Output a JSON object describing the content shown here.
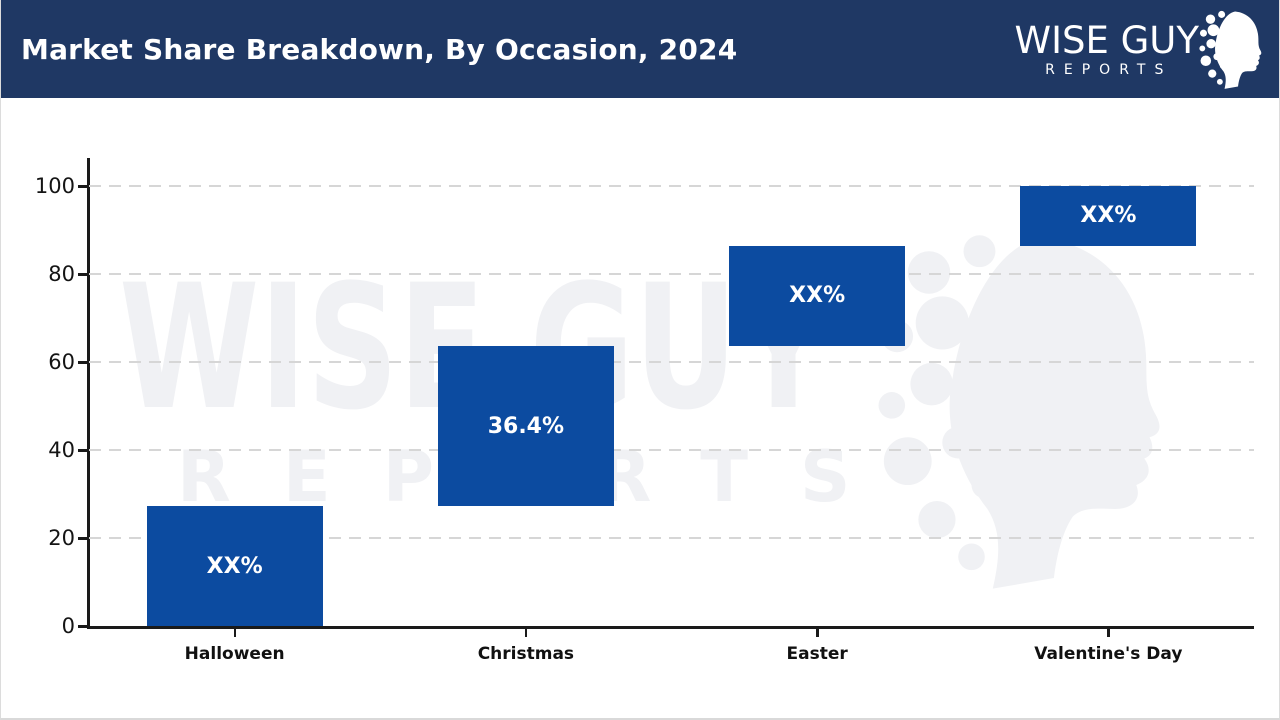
{
  "header": {
    "title": "Market Share Breakdown, By Occasion, 2024",
    "logo": {
      "line1": "WISE GUY",
      "line2": "REPORTS"
    }
  },
  "watermark": {
    "line1": "WISE GUY",
    "line2": "REPORTS"
  },
  "colors": {
    "header_bg": "#1f3864",
    "bar_fill": "#0c4ba0",
    "bar_label": "#ffffff",
    "gridline": "#d6d6d6",
    "axis": "#1a1a1a",
    "watermark": "#f0f1f4"
  },
  "chart_data": {
    "type": "bar",
    "subtype": "waterfall-floating-bars",
    "title": "Market Share Breakdown, By Occasion, 2024",
    "categories": [
      "Halloween",
      "Christmas",
      "Easter",
      "Valentine's Day"
    ],
    "values": [
      27.2,
      36.4,
      22.8,
      13.6
    ],
    "segments": [
      {
        "category": "Halloween",
        "start": 0,
        "end": 27.2,
        "label": "XX%"
      },
      {
        "category": "Christmas",
        "start": 27.2,
        "end": 63.6,
        "label": "36.4%"
      },
      {
        "category": "Easter",
        "start": 63.6,
        "end": 86.4,
        "label": "XX%"
      },
      {
        "category": "Valentine's Day",
        "start": 86.4,
        "end": 100,
        "label": "XX%"
      }
    ],
    "xlabel": "",
    "ylabel": "",
    "ylim": [
      0,
      106
    ],
    "yticks": [
      0,
      20,
      40,
      60,
      80,
      100
    ],
    "grid": "horizontal-dashed",
    "legend": "none",
    "bar_color": "#0c4ba0"
  }
}
